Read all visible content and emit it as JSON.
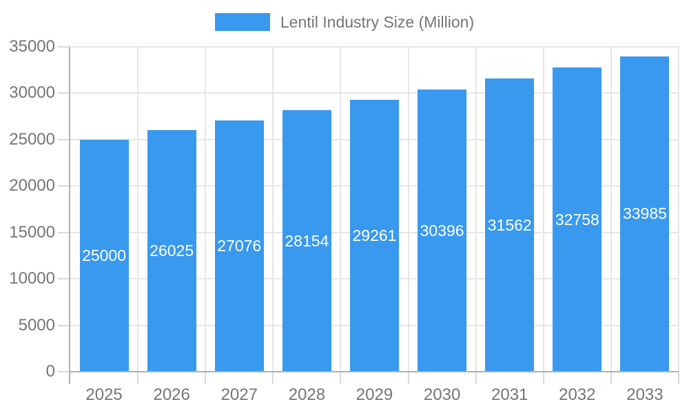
{
  "chart_data": {
    "type": "bar",
    "title": "",
    "legend": {
      "label": "Lentil Industry Size (Million)",
      "position": "top"
    },
    "categories": [
      "2025",
      "2026",
      "2027",
      "2028",
      "2029",
      "2030",
      "2031",
      "2032",
      "2033"
    ],
    "series": [
      {
        "name": "Lentil Industry Size (Million)",
        "values": [
          25000,
          26025,
          27076,
          28154,
          29261,
          30396,
          31562,
          32758,
          33985
        ]
      }
    ],
    "bar_value_labels": [
      "25000",
      "26025",
      "27076",
      "28154",
      "29261",
      "30396",
      "31562",
      "32758",
      "33985"
    ],
    "xlabel": "",
    "ylabel": "",
    "ylim": [
      0,
      35000
    ],
    "yticks": [
      0,
      5000,
      10000,
      15000,
      20000,
      25000,
      30000,
      35000
    ],
    "ytick_labels": [
      "0",
      "5000",
      "10000",
      "15000",
      "20000",
      "25000",
      "30000",
      "35000"
    ],
    "grid": true,
    "colors": {
      "bar": "#3999ee",
      "bar_label_text": "#ffffff",
      "axis_text": "#757575",
      "legend_text": "#757575",
      "gridline": "#e6e6e6",
      "axis_line": "#b0b0b0",
      "tick": "#d9d9d9",
      "background": "#ffffff"
    }
  }
}
